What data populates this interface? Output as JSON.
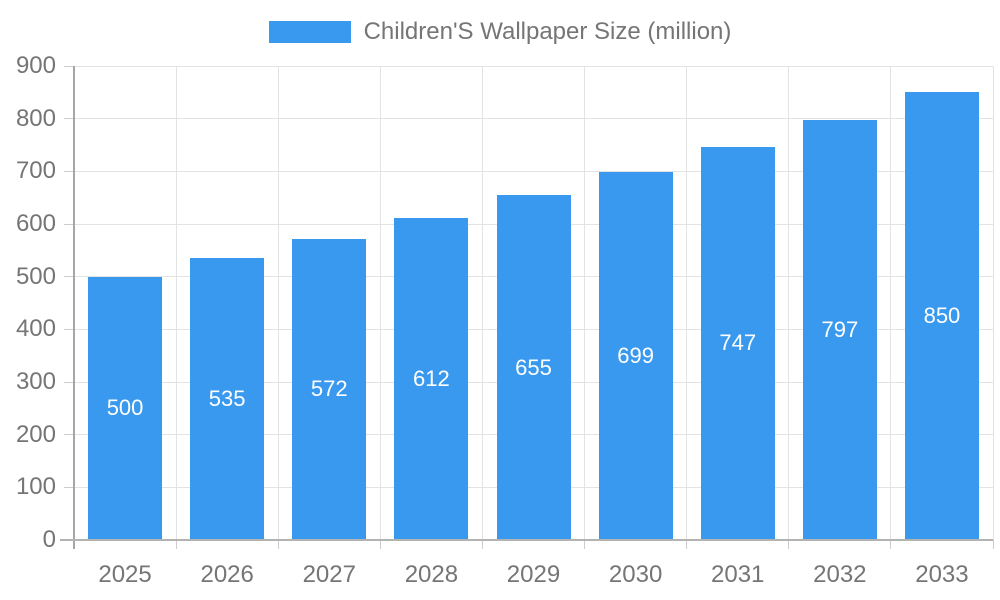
{
  "chart": {
    "legend": {
      "label": "Children'S Wallpaper Size (million)"
    },
    "colors": {
      "bar": "#3999ee",
      "grid": "#e3e3e3",
      "y_axis_line": "#a6a6a6",
      "x_axis_line": "#b3b3b3",
      "tick": "#cccccc",
      "axis_text": "#757575",
      "value_label_text": "#ffffff",
      "background": "#ffffff"
    }
  },
  "chart_data": {
    "type": "bar",
    "title": "Children'S Wallpaper Size (million)",
    "categories": [
      "2025",
      "2026",
      "2027",
      "2028",
      "2029",
      "2030",
      "2031",
      "2032",
      "2033"
    ],
    "series": [
      {
        "name": "Children'S Wallpaper Size (million)",
        "values": [
          500,
          535,
          572,
          612,
          655,
          699,
          747,
          797,
          850
        ]
      }
    ],
    "xlabel": "",
    "ylabel": "",
    "ylim": [
      0,
      900
    ],
    "yticks": [
      0,
      100,
      200,
      300,
      400,
      500,
      600,
      700,
      800,
      900
    ],
    "grid": true,
    "legend_position": "top",
    "value_labels": "inside-center"
  }
}
